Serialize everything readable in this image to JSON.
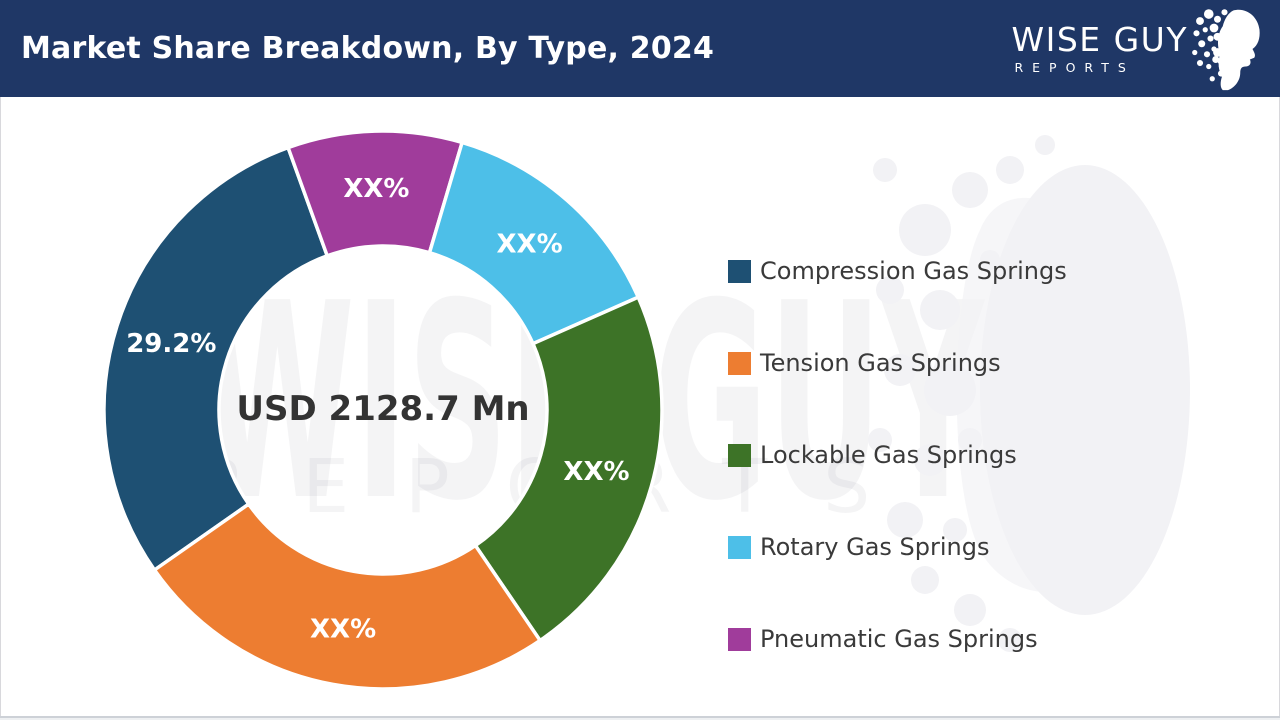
{
  "header": {
    "title": "Market Share Breakdown, By Type, 2024"
  },
  "logo": {
    "line1": "WISE GUY",
    "line2": "REPORTS"
  },
  "watermark": {
    "line1": "WISE GUY",
    "line2": "REPORTS"
  },
  "chart_data": {
    "type": "pie",
    "subtype": "donut",
    "title": "Market Share Breakdown, By Type, 2024",
    "center_label": "USD 2128.7 Mn",
    "legend_position": "right",
    "start_angle_deg_clockwise_from_top": 235,
    "draw_order": [
      0,
      4,
      3,
      2,
      1
    ],
    "values_note": "only the Compression slice percentage is shown; XX% slice values are estimated from arc angles",
    "slices": [
      {
        "label": "Compression Gas Springs",
        "display_pct": "29.2%",
        "pct": 29.2,
        "color": "#1e5073"
      },
      {
        "label": "Tension Gas Springs",
        "display_pct": "XX%",
        "pct": 24.8,
        "color": "#ed7d31"
      },
      {
        "label": "Lockable Gas Springs",
        "display_pct": "XX%",
        "pct": 22.1,
        "color": "#3d7327"
      },
      {
        "label": "Rotary Gas Springs",
        "display_pct": "XX%",
        "pct": 13.8,
        "color": "#4dbfe8"
      },
      {
        "label": "Pneumatic Gas Springs",
        "display_pct": "XX%",
        "pct": 10.1,
        "color": "#a03c9b"
      }
    ]
  }
}
